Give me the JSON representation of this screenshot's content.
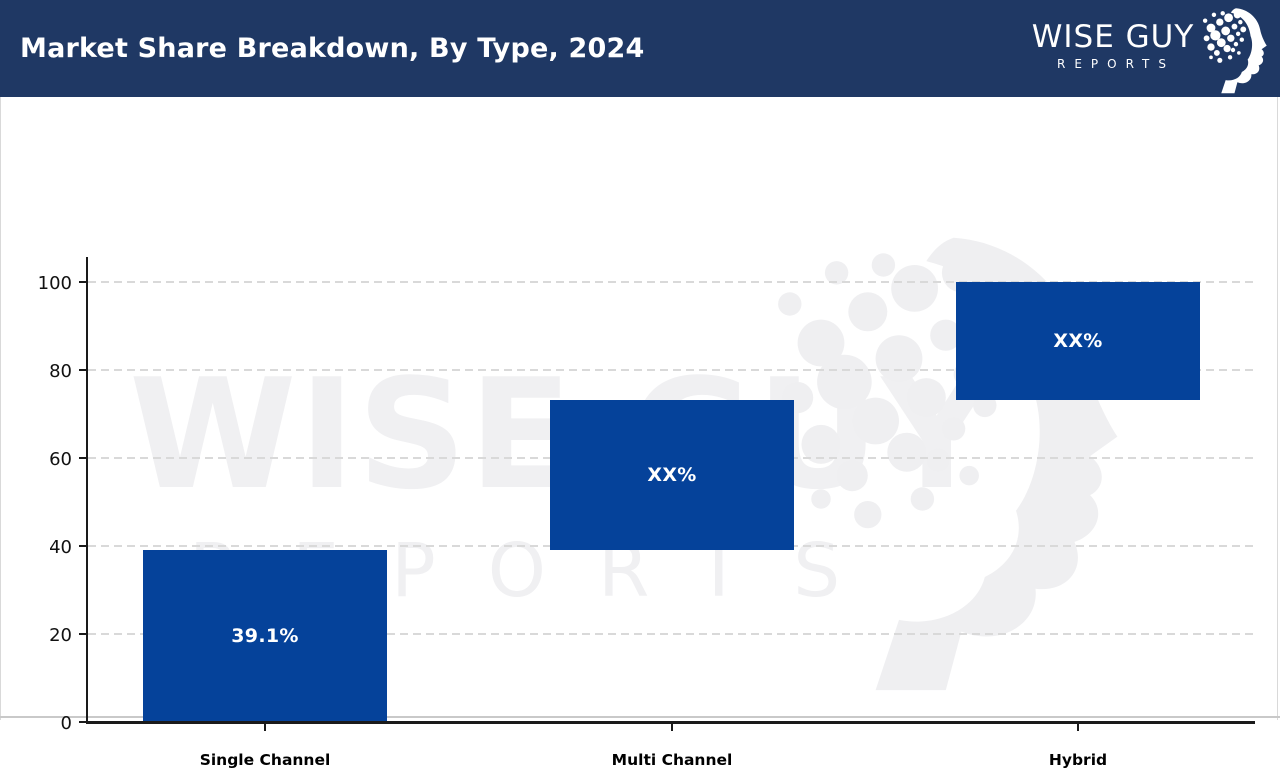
{
  "header": {
    "title": "Market Share Breakdown, By Type, 2024",
    "logo": {
      "line1": "WISE GUY",
      "line2": "REPORTS"
    }
  },
  "watermark": {
    "line1": "WISE GUY",
    "line2": "REPORTS"
  },
  "chart_data": {
    "type": "bar",
    "subtype": "floating-segment-waterfall",
    "title": "Market Share Breakdown, By Type, 2024",
    "categories": [
      "Single Channel",
      "Multi Channel",
      "Hybrid"
    ],
    "segments": [
      {
        "category": "Single Channel",
        "start": 0,
        "end": 39.1,
        "label": "39.1%"
      },
      {
        "category": "Multi Channel",
        "start": 39.1,
        "end": 73.2,
        "label": "XX%"
      },
      {
        "category": "Hybrid",
        "start": 73.2,
        "end": 100,
        "label": "XX%"
      }
    ],
    "xlabel": "",
    "ylabel": "",
    "ylim": [
      0,
      105
    ],
    "yticks": [
      0,
      20,
      40,
      60,
      80,
      100
    ],
    "grid": "horizontal-dashed",
    "legend": "none",
    "bar_label_note": "labels shown inside bars at segment centers"
  },
  "colors": {
    "header_bg": "#1f3864",
    "bar": "#05429a",
    "grid": "#d9d9d9",
    "axis": "#1a1a1a",
    "watermark": "#f0f0f2",
    "title_text": "#ffffff",
    "bar_label_text": "#ffffff"
  }
}
